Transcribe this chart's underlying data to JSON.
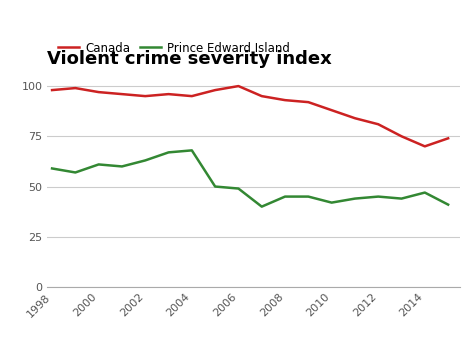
{
  "title": "Violent crime severity index",
  "years": [
    1998,
    1999,
    2000,
    2001,
    2002,
    2003,
    2004,
    2005,
    2006,
    2007,
    2008,
    2009,
    2010,
    2011,
    2012,
    2013,
    2014,
    2015
  ],
  "canada": [
    98,
    99,
    97,
    96,
    95,
    96,
    95,
    98,
    100,
    95,
    93,
    92,
    88,
    84,
    81,
    75,
    70,
    74
  ],
  "pei": [
    59,
    57,
    61,
    60,
    63,
    67,
    68,
    50,
    49,
    40,
    45,
    45,
    42,
    44,
    45,
    44,
    47,
    41
  ],
  "canada_color": "#cc2222",
  "pei_color": "#338833",
  "legend_canada": "Canada",
  "legend_pei": "Prince Edward Island",
  "ylim": [
    0,
    108
  ],
  "yticks": [
    0,
    25,
    50,
    75,
    100
  ],
  "xticks": [
    1998,
    2000,
    2002,
    2004,
    2006,
    2008,
    2010,
    2012,
    2014
  ],
  "background_color": "#ffffff",
  "grid_color": "#cccccc",
  "title_fontsize": 13,
  "legend_fontsize": 8.5,
  "tick_fontsize": 8,
  "line_width": 1.8
}
